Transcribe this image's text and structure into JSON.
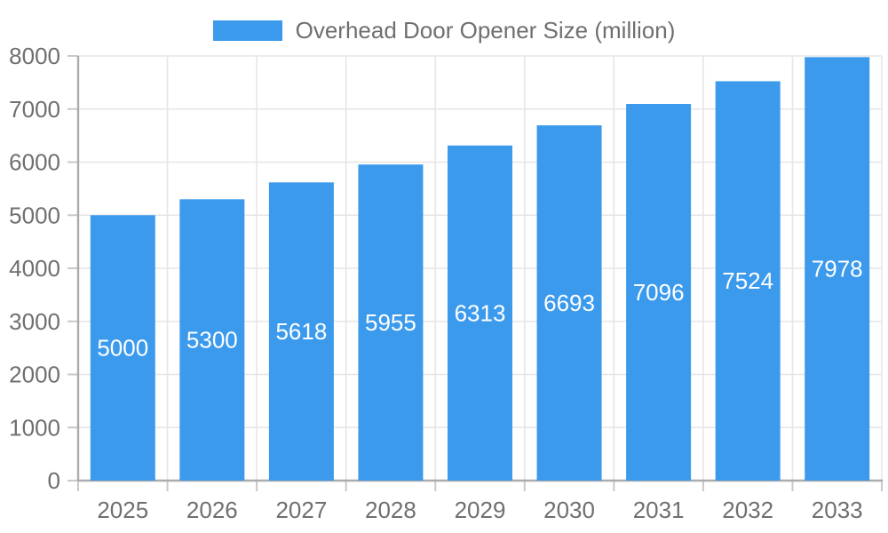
{
  "chart_data": {
    "type": "bar",
    "title": "Overhead Door Opener Size (million)",
    "legend": {
      "position": "top",
      "entries": [
        {
          "label": "Overhead Door Opener Size (million)",
          "swatch_color": "#3C9AED"
        }
      ]
    },
    "categories": [
      "2025",
      "2026",
      "2027",
      "2028",
      "2029",
      "2030",
      "2031",
      "2032",
      "2033"
    ],
    "series": [
      {
        "name": "Overhead Door Opener Size (million)",
        "values": [
          5000,
          5300,
          5618,
          5955,
          6313,
          6693,
          7096,
          7524,
          7978
        ]
      }
    ],
    "value_labels": [
      "5000",
      "5300",
      "5618",
      "5955",
      "6313",
      "6693",
      "7096",
      "7524",
      "7978"
    ],
    "value_label_placement": "inside-center",
    "xlabel": "",
    "ylabel": "",
    "ylim": [
      0,
      8000
    ],
    "ytick_step": 1000,
    "ytick_labels": [
      "0",
      "1000",
      "2000",
      "3000",
      "4000",
      "5000",
      "6000",
      "7000",
      "8000"
    ],
    "grid": true,
    "colors": {
      "bar": "#3C9AED",
      "axis_text": "#6F6F6F",
      "value_text": "#FFFFFF",
      "gridline": "#E6E6E6",
      "axis_line": "#ACACAC",
      "tick_mark": "#C9C9C9"
    }
  }
}
